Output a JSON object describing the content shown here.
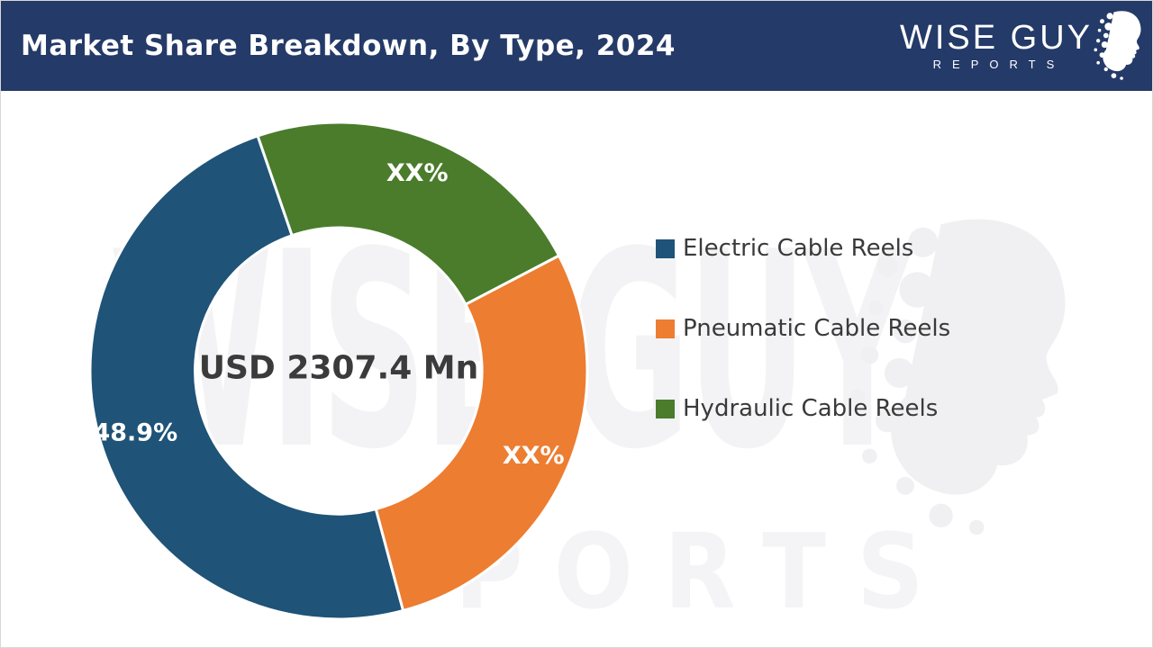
{
  "header": {
    "title": "Market Share Breakdown, By Type, 2024",
    "bg_color": "#243A68",
    "logo": {
      "line1": "WISE GUY",
      "line2": "REPORTS"
    }
  },
  "watermark": {
    "line1": "WISE GUY",
    "line2": "REPORTS"
  },
  "chart_data": {
    "type": "pie",
    "variant": "donut",
    "title": "Market Share Breakdown, By Type, 2024",
    "center_label": "USD 2307.4 Mn",
    "start_angle_deg": 109,
    "direction": "counterclockwise",
    "legend_position": "right",
    "gap_color": "#ffffff",
    "segments": [
      {
        "label": "Electric Cable Reels",
        "display_value": "48.9%",
        "share_pct_est": 48.9,
        "color": "#1F5378"
      },
      {
        "label": "Pneumatic Cable Reels",
        "display_value": "XX%",
        "share_pct_est": 28.5,
        "color": "#ED7D31"
      },
      {
        "label": "Hydraulic Cable Reels",
        "display_value": "XX%",
        "share_pct_est": 22.6,
        "color": "#4A7C2B"
      }
    ]
  }
}
